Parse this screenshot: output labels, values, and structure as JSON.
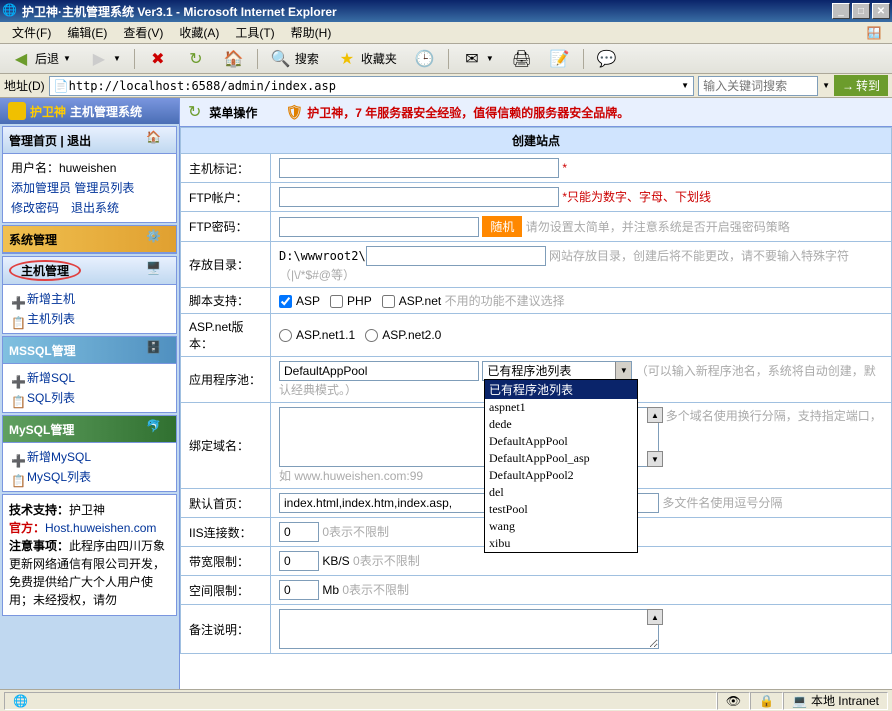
{
  "window": {
    "title": "护卫神·主机管理系统 Ver3.1 - Microsoft Internet Explorer"
  },
  "menubar": {
    "items": [
      "文件(F)",
      "编辑(E)",
      "查看(V)",
      "收藏(A)",
      "工具(T)",
      "帮助(H)"
    ]
  },
  "toolbar": {
    "back": "后退",
    "search": "搜索",
    "favorites": "收藏夹"
  },
  "addressbar": {
    "label": "地址(D)",
    "url": "http://localhost:6588/admin/index.asp",
    "search_placeholder": "输入关键词搜索",
    "go": "转到"
  },
  "sidebar": {
    "brand": "护卫神",
    "product": "主机管理系统",
    "groups": [
      {
        "title_parts": [
          "管理首页",
          "|",
          "退出"
        ],
        "body_html": "用户名：huweishen<br>添加管理员 管理员列表<br>修改密码　退出系统"
      },
      {
        "title": "系统管理",
        "style": "orange"
      },
      {
        "title": "主机管理",
        "links": [
          {
            "icon": "add",
            "text": "新增主机",
            "circled": true
          },
          {
            "icon": "list",
            "text": "主机列表"
          }
        ]
      },
      {
        "title": "MSSQL管理",
        "style": "blue2",
        "links": [
          {
            "icon": "add",
            "text": "新增SQL"
          },
          {
            "icon": "list",
            "text": "SQL列表"
          }
        ]
      },
      {
        "title": "MySQL管理",
        "style": "green2",
        "links": [
          {
            "icon": "add",
            "text": "新增MySQL"
          },
          {
            "icon": "list",
            "text": "MySQL列表"
          }
        ]
      }
    ],
    "footer": {
      "tech_label": "技术支持：",
      "tech_value": "护卫神",
      "official_label": "官方：",
      "official_value": "Host.huweishen.com",
      "notice_label": "注意事项：",
      "notice_text": "此程序由四川万象更新网络通信有限公司开发，免费提供给广大个人用户使用；未经授权，请勿"
    }
  },
  "main": {
    "toolbar_title": "菜单操作",
    "banner": "护卫神，7 年服务器安全经验，值得信赖的服务器安全品牌。",
    "form_title": "创建站点",
    "rows": {
      "host_tag": {
        "label": "主机标记：",
        "value": "",
        "required": "*"
      },
      "ftp_user": {
        "label": "FTP帐户：",
        "value": "",
        "hint": "*只能为数字、字母、下划线"
      },
      "ftp_pass": {
        "label": "FTP密码：",
        "value": "",
        "btn": "随机",
        "hint": "请勿设置太简单，并注意系统是否开启强密码策略"
      },
      "storage": {
        "label": "存放目录：",
        "prefix": "D:\\wwwroot2\\",
        "value": "",
        "hint": "网站存放目录，创建后将不能更改，请不要输入特殊字符（|\\/*$#@等）"
      },
      "script": {
        "label": "脚本支持：",
        "asp": "ASP",
        "php": "PHP",
        "aspnet": "ASP.net",
        "hint": "不用的功能不建议选择"
      },
      "aspnet_ver": {
        "label": "ASP.net版本：",
        "v1": "ASP.net1.1",
        "v2": "ASP.net2.0"
      },
      "apppool": {
        "label": "应用程序池：",
        "value": "DefaultAppPool",
        "select_label": "已有程序池列表",
        "hint": "（可以输入新程序池名，系统将自动创建，默认经典模式。）",
        "options": [
          "已有程序池列表",
          "aspnet1",
          "dede",
          "DefaultAppPool",
          "DefaultAppPool_asp",
          "DefaultAppPool2",
          "del",
          "testPool",
          "wang",
          "xibu"
        ]
      },
      "domain": {
        "label": "绑定域名：",
        "value": "",
        "hint": "多个域名使用换行分隔，支持指定端口，如 www.huweishen.com:99"
      },
      "default_page": {
        "label": "默认首页：",
        "value": "index.html,index.htm,index.asp,",
        "hint": "多文件名使用逗号分隔"
      },
      "iis_conn": {
        "label": "IIS连接数：",
        "value": "0",
        "hint": "0表示不限制"
      },
      "bandwidth": {
        "label": "带宽限制：",
        "value": "0",
        "unit": "KB/S",
        "hint": "0表示不限制"
      },
      "space": {
        "label": "空间限制：",
        "value": "0",
        "unit": "Mb",
        "hint": "0表示不限制"
      },
      "remark": {
        "label": "备注说明：",
        "value": ""
      }
    }
  },
  "statusbar": {
    "zone": "本地 Intranet"
  },
  "colors": {
    "title_bg": "#0a246a",
    "toolbar_bg": "#ece9d8",
    "sidebar_bg": "#c0d8f0",
    "header_blue": "#4a6eb5",
    "brand_gold": "#ffcc00",
    "table_header": "#d0e4fe",
    "table_border": "#a0c0e0",
    "required_red": "#cc0000",
    "btn_orange": "#ff8800"
  }
}
